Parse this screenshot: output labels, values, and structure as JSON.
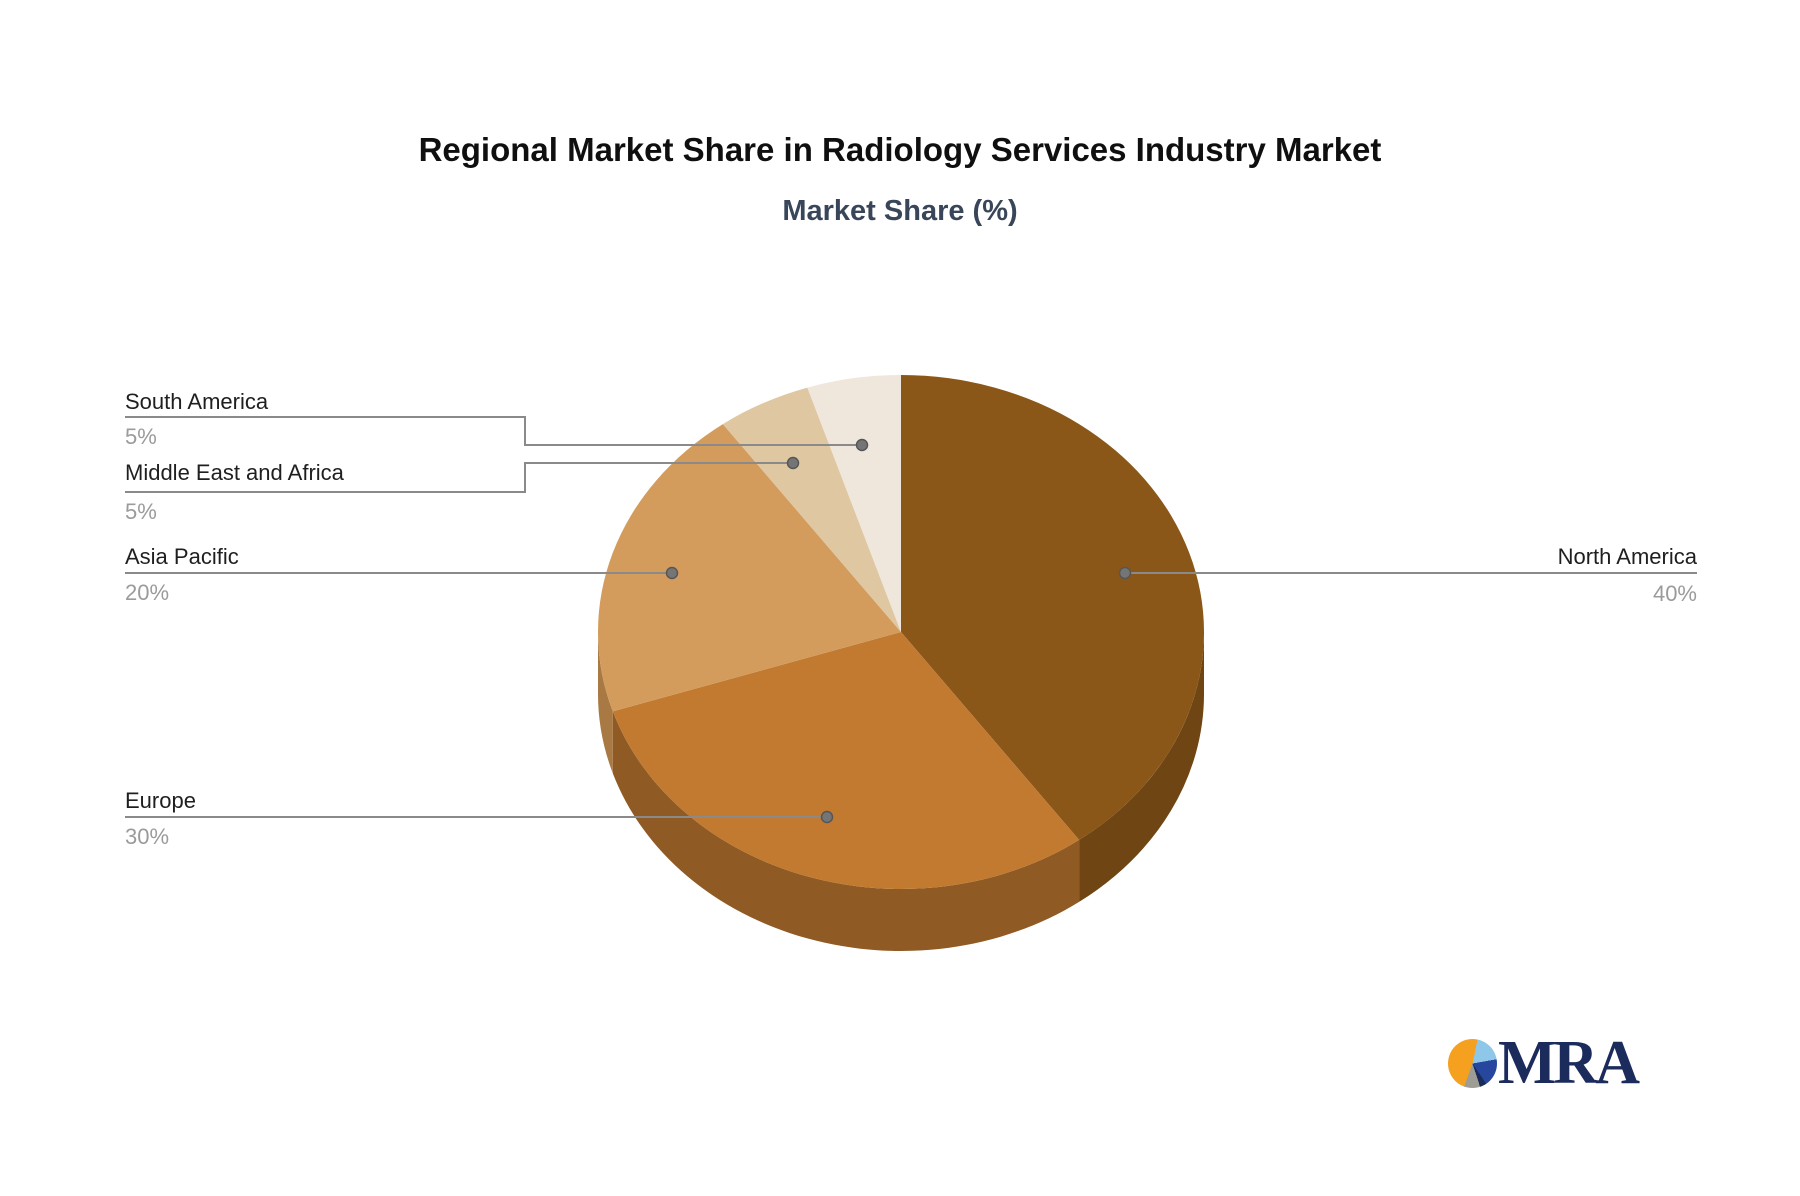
{
  "header": {
    "title": "Regional Market Share in Radiology Services Industry Market",
    "subtitle": "Market Share (%)"
  },
  "chart_data": {
    "type": "pie",
    "style": "3d-pie",
    "title": "Regional Market Share in Radiology Services Industry Market",
    "subtitle": "Market Share (%)",
    "unit": "%",
    "categories": [
      "North America",
      "Europe",
      "Asia Pacific",
      "Middle East and Africa",
      "South America"
    ],
    "values": [
      40,
      30,
      20,
      5,
      5
    ],
    "start_angle_deg": 0,
    "direction": "clockwise",
    "label_style": "callout-leader-lines",
    "slices": [
      {
        "label": "North America",
        "value": 40,
        "display_value": "40%",
        "color": "#8b5718",
        "wall_color": "#6e4513",
        "label_side": "right"
      },
      {
        "label": "Europe",
        "value": 30,
        "display_value": "30%",
        "color": "#c17a2f",
        "wall_color": "#8f5a23",
        "label_side": "left"
      },
      {
        "label": "Asia Pacific",
        "value": 20,
        "display_value": "20%",
        "color": "#d49c5c",
        "wall_color": "#a87943",
        "label_side": "left"
      },
      {
        "label": "Middle East and Africa",
        "value": 5,
        "display_value": "5%",
        "color": "#dfc7a2",
        "wall_color": "#b89e7e",
        "label_side": "left"
      },
      {
        "label": "South America",
        "value": 5,
        "display_value": "5%",
        "color": "#efe6dc",
        "wall_color": "#c6bab0",
        "label_side": "left"
      }
    ],
    "text_colors": {
      "label": "#1f1f1f",
      "value": "#9b9b9b",
      "leader_line": "#8a8a8a",
      "dot": "#757575"
    }
  },
  "logo": {
    "text": "MRA",
    "text_color": "#1b2b5c",
    "icon": "pie-chart-circle",
    "icon_colors": {
      "orange": "#f5a11f",
      "light_blue": "#8fc7e9",
      "blue": "#27479f",
      "navy": "#1a2b57",
      "gray": "#9d9d95"
    }
  }
}
